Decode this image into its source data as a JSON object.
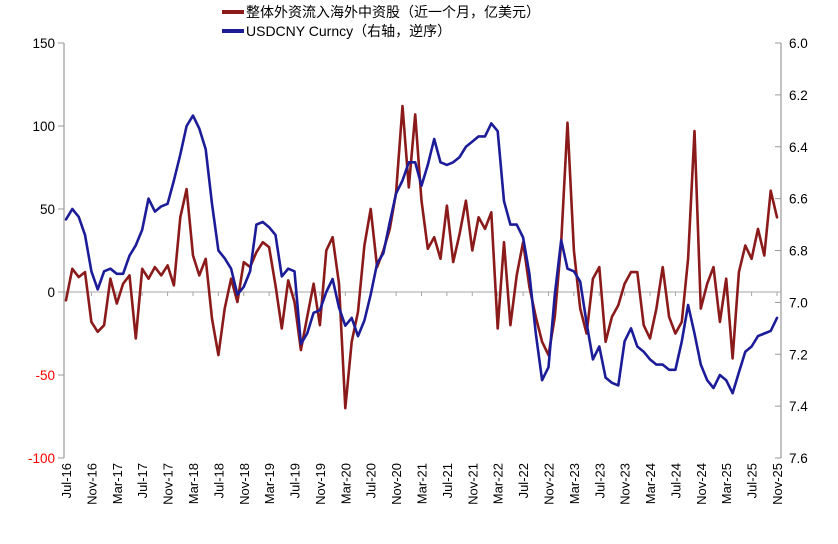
{
  "legend": {
    "series1": {
      "label": "整体外资流入海外中资股（近一个月，亿美元）",
      "color": "#8B1A1A"
    },
    "series2": {
      "label": "USDCNY Curncy（右轴，逆序）",
      "color": "#1C1C99"
    }
  },
  "left_axis": {
    "tick_labels": [
      "150",
      "100",
      "50",
      "0",
      "-50",
      "-100"
    ],
    "tick_values": [
      150,
      100,
      50,
      0,
      -50,
      -100
    ],
    "positive_color": "#000000",
    "negative_color": "#FF0000"
  },
  "right_axis": {
    "tick_labels": [
      "6.0",
      "6.2",
      "6.4",
      "6.6",
      "6.8",
      "7.0",
      "7.2",
      "7.4",
      "7.6"
    ],
    "tick_values": [
      6.0,
      6.2,
      6.4,
      6.6,
      6.8,
      7.0,
      7.2,
      7.4,
      7.6
    ],
    "color": "#000000"
  },
  "x_axis": {
    "tick_labels": [
      "Jul-16",
      "Nov-16",
      "Mar-17",
      "Jul-17",
      "Nov-17",
      "Mar-18",
      "Jul-18",
      "Nov-18",
      "Mar-19",
      "Jul-19",
      "Nov-19",
      "Mar-20",
      "Jul-20",
      "Nov-20",
      "Mar-21",
      "Jul-21",
      "Nov-21",
      "Mar-22",
      "Jul-22",
      "Nov-22",
      "Mar-23",
      "Jul-23",
      "Nov-23",
      "Mar-24",
      "Jul-24",
      "Nov-24",
      "Mar-25",
      "Jul-25",
      "Nov-25"
    ],
    "label_every_n_months": 4,
    "color": "#000000"
  },
  "style_colors": {
    "axis_line": "#999999",
    "zero_line": "#A6A6A6",
    "background": "#FFFFFF"
  },
  "chart_data": {
    "type": "line",
    "title": "",
    "x_start": "Jul-2016",
    "x_end": "Nov-2025",
    "x_frequency": "monthly",
    "left_ylim": [
      -100,
      150
    ],
    "right_ylim": [
      6.0,
      7.6
    ],
    "right_axis_inverted": true,
    "grid": "zero-line-only",
    "legend_position": "top-center",
    "series": [
      {
        "name": "整体外资流入海外中资股（近一个月，亿美元）",
        "axis": "left",
        "color": "#8B1A1A",
        "values": [
          -5,
          14,
          9,
          12,
          -18,
          -24,
          -20,
          8,
          -7,
          5,
          10,
          -28,
          14,
          8,
          15,
          10,
          16,
          4,
          45,
          62,
          22,
          10,
          20,
          -16,
          -38,
          -10,
          8,
          -6,
          18,
          15,
          24,
          30,
          27,
          4,
          -22,
          7,
          -6,
          -35,
          -15,
          5,
          -20,
          25,
          33,
          5,
          -70,
          -30,
          -12,
          28,
          50,
          15,
          25,
          38,
          60,
          112,
          63,
          107,
          55,
          26,
          33,
          20,
          52,
          18,
          35,
          55,
          25,
          45,
          38,
          48,
          -22,
          30,
          -20,
          10,
          30,
          3,
          -15,
          -30,
          -38,
          -15,
          30,
          102,
          25,
          -10,
          -25,
          8,
          15,
          -30,
          -15,
          -8,
          5,
          12,
          12,
          -20,
          -28,
          -10,
          15,
          -15,
          -25,
          -18,
          20,
          97,
          -10,
          5,
          15,
          -18,
          8,
          -40,
          12,
          28,
          20,
          38,
          22,
          61,
          45
        ]
      },
      {
        "name": "USDCNY Curncy（右轴，逆序）",
        "axis": "right",
        "color": "#1C1C99",
        "values": [
          6.68,
          6.64,
          6.67,
          6.74,
          6.88,
          6.95,
          6.88,
          6.87,
          6.89,
          6.89,
          6.82,
          6.78,
          6.72,
          6.6,
          6.65,
          6.63,
          6.62,
          6.53,
          6.43,
          6.32,
          6.28,
          6.33,
          6.41,
          6.62,
          6.8,
          6.83,
          6.87,
          6.97,
          6.94,
          6.88,
          6.7,
          6.69,
          6.71,
          6.74,
          6.9,
          6.87,
          6.88,
          7.16,
          7.12,
          7.04,
          7.03,
          6.96,
          6.91,
          7.02,
          7.09,
          7.06,
          7.13,
          7.07,
          6.97,
          6.85,
          6.81,
          6.69,
          6.58,
          6.53,
          6.46,
          6.46,
          6.55,
          6.47,
          6.37,
          6.46,
          6.47,
          6.46,
          6.44,
          6.4,
          6.38,
          6.36,
          6.36,
          6.31,
          6.34,
          6.61,
          6.7,
          6.7,
          6.75,
          6.89,
          7.12,
          7.3,
          7.25,
          6.97,
          6.76,
          6.87,
          6.88,
          6.92,
          7.08,
          7.22,
          7.17,
          7.29,
          7.31,
          7.32,
          7.15,
          7.1,
          7.17,
          7.19,
          7.22,
          7.24,
          7.24,
          7.26,
          7.26,
          7.15,
          7.01,
          7.12,
          7.24,
          7.3,
          7.33,
          7.28,
          7.3,
          7.35,
          7.27,
          7.19,
          7.17,
          7.13,
          7.12,
          7.11,
          7.06
        ]
      }
    ]
  }
}
